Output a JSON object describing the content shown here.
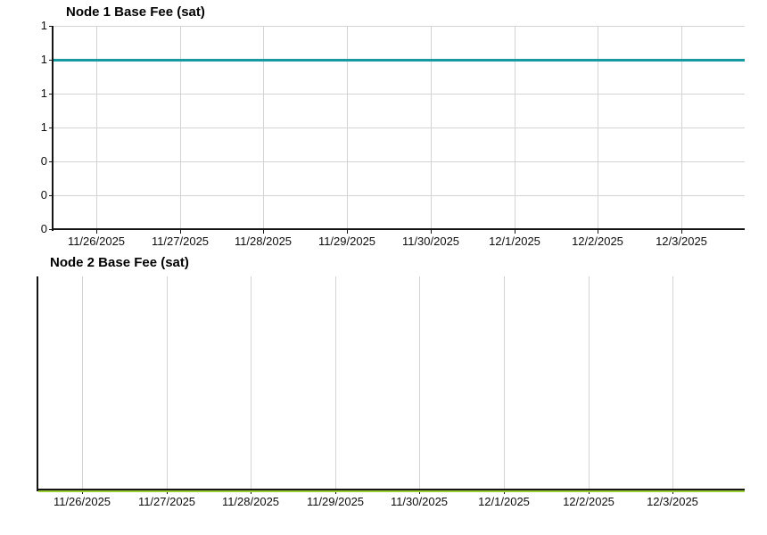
{
  "window": {
    "background": "#ffffff",
    "description": "Two stacked line charts showing Lightning node base fees over time"
  },
  "colors": {
    "node1_series": "#1799a1",
    "node2_series": "#9acd32",
    "gridline": "#d3d3d3",
    "axis": "#151515",
    "text": "#0d0d0d"
  },
  "chart_data": [
    {
      "type": "line",
      "title": "Node 1 Base Fee (sat)",
      "xlabel": "",
      "ylabel": "",
      "x": [
        "11/26/2025",
        "11/27/2025",
        "11/28/2025",
        "11/29/2025",
        "11/30/2025",
        "12/1/2025",
        "12/2/2025",
        "12/3/2025"
      ],
      "series": [
        {
          "name": "Node 1 Base Fee",
          "values": [
            1,
            1,
            1,
            1,
            1,
            1,
            1,
            1
          ],
          "color": "#1799a1"
        }
      ],
      "ylim": [
        0,
        1.2
      ],
      "y_ticks_values_top_to_bottom": [
        1.2,
        1.0,
        0.8,
        0.6,
        0.4,
        0.2,
        0
      ],
      "y_ticks_labels_top_to_bottom": [
        "1",
        "1",
        "1",
        "1",
        "0",
        "0",
        "0"
      ],
      "grid": "both",
      "legend": "none"
    },
    {
      "type": "line",
      "title": "Node 2 Base Fee (sat)",
      "xlabel": "",
      "ylabel": "",
      "x": [
        "11/26/2025",
        "11/27/2025",
        "11/28/2025",
        "11/29/2025",
        "11/30/2025",
        "12/1/2025",
        "12/2/2025",
        "12/3/2025"
      ],
      "series": [
        {
          "name": "Node 2 Base Fee",
          "values": [
            0,
            0,
            0,
            0,
            0,
            0,
            0,
            0
          ],
          "color": "#9acd32"
        }
      ],
      "ylim": [
        0,
        1
      ],
      "y_ticks_values_top_to_bottom": [],
      "y_ticks_labels_top_to_bottom": [],
      "grid": "vertical-only",
      "legend": "none"
    }
  ]
}
